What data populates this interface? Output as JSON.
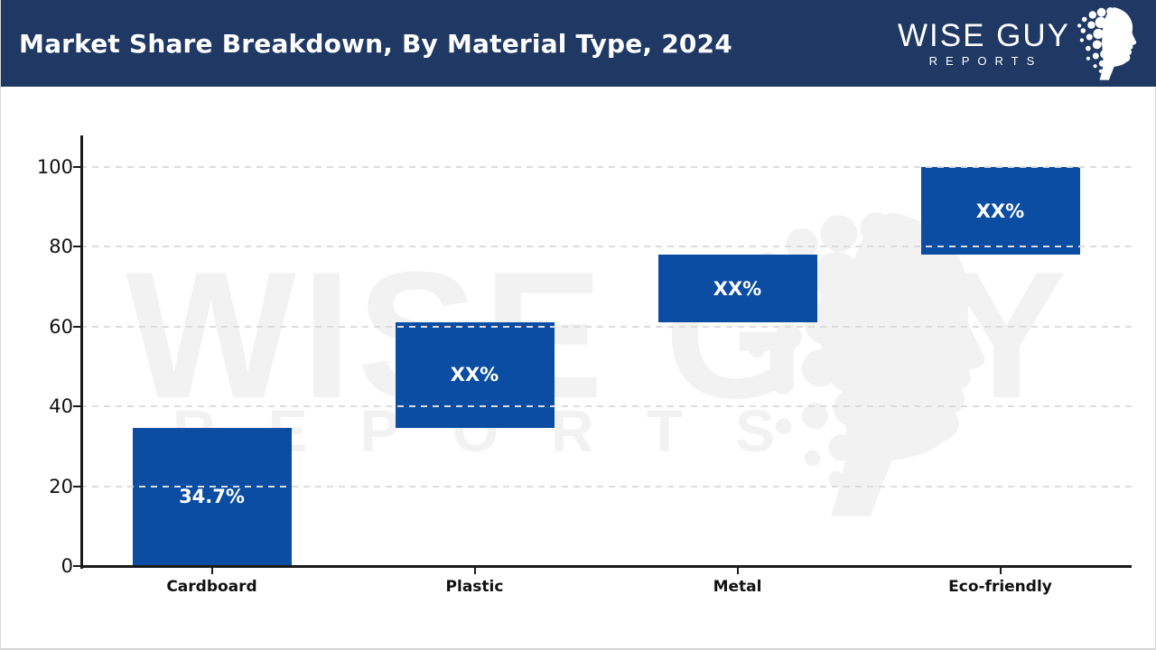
{
  "header": {
    "title": "Market Share Breakdown, By Material Type, 2024",
    "logo_line1": "WISE GUY",
    "logo_line2": "REPORTS"
  },
  "watermark": {
    "line1": "WISE GUY",
    "line2": "REPORTS"
  },
  "colors": {
    "header_bg": "#1F3864",
    "bar_fill": "#0B4DA2",
    "gridline": "#DCDCDC",
    "axis": "#1A1A1A",
    "bar_label_text": "#FFFFFF",
    "watermark": "#F2F2F2"
  },
  "chart_data": {
    "type": "bar",
    "subtype": "waterfall",
    "title": "Market Share Breakdown, By Material Type, 2024",
    "categories": [
      "Cardboard",
      "Plastic",
      "Metal",
      "Eco-friendly"
    ],
    "segments": [
      {
        "category": "Cardboard",
        "start": 0,
        "end": 34.7,
        "label": "34.7%"
      },
      {
        "category": "Plastic",
        "start": 34.7,
        "end": 61,
        "label": "XX%"
      },
      {
        "category": "Metal",
        "start": 61,
        "end": 78,
        "label": "XX%"
      },
      {
        "category": "Eco-friendly",
        "start": 78,
        "end": 100,
        "label": "XX%"
      }
    ],
    "y_ticks": [
      0,
      20,
      40,
      60,
      80,
      100
    ],
    "ylim": [
      0,
      107
    ],
    "xlabel": "",
    "ylabel": "",
    "grid": "horizontal-dashed",
    "legend": "none",
    "bar_color": "#0B4DA2"
  }
}
